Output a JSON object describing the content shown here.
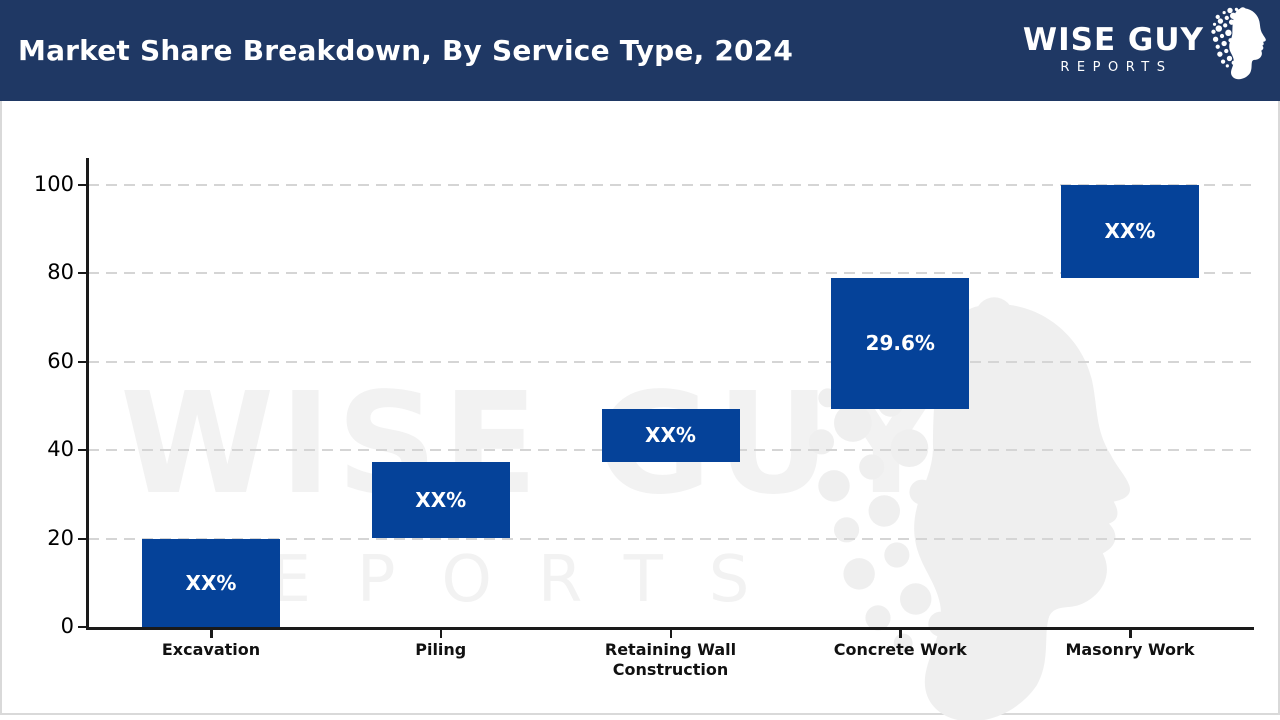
{
  "header": {
    "title": "Market Share Breakdown, By Service Type, 2024",
    "logo": {
      "line1": "WISE GUY",
      "line2": "REPORTS"
    }
  },
  "watermark": {
    "line1": "WISE GUY",
    "line2": "REPORTS"
  },
  "colors": {
    "header_bg": "#1f3864",
    "bar": "#054299",
    "grid": "#d5d5d5",
    "axis": "#1a1a1a",
    "title_text": "#ffffff"
  },
  "chart_data": {
    "type": "bar",
    "subtype": "waterfall",
    "title": "Market Share Breakdown, By Service Type, 2024",
    "xlabel": "",
    "ylabel": "",
    "categories": [
      "Excavation",
      "Piling",
      "Retaining Wall\nConstruction",
      "Concrete Work",
      "Masonry Work"
    ],
    "segments": [
      {
        "label": "Excavation",
        "start": 0,
        "end": 20,
        "value_label": "XX%"
      },
      {
        "label": "Piling",
        "start": 20,
        "end": 37.4,
        "value_label": "XX%"
      },
      {
        "label": "Retaining Wall\nConstruction",
        "start": 37.4,
        "end": 49.3,
        "value_label": "XX%"
      },
      {
        "label": "Concrete Work",
        "start": 49.3,
        "end": 78.9,
        "value_label": "29.6%"
      },
      {
        "label": "Masonry Work",
        "start": 78.9,
        "end": 100,
        "value_label": "XX%"
      }
    ],
    "y_ticks": [
      0,
      20,
      40,
      60,
      80,
      100
    ],
    "ylim": [
      0,
      105
    ],
    "grid": "horizontal-dashed",
    "legend": "none",
    "bar_color": "#054299"
  }
}
